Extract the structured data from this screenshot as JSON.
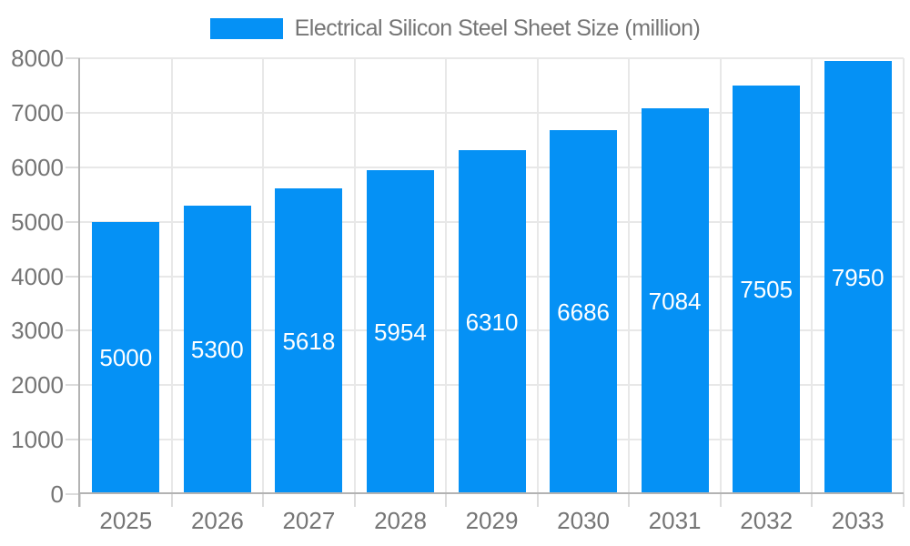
{
  "chart_data": {
    "type": "bar",
    "title": "Electrical Silicon Steel Sheet Size (million)",
    "legend": {
      "position": "top",
      "items": [
        "Electrical Silicon Steel Sheet Size (million)"
      ]
    },
    "categories": [
      "2025",
      "2026",
      "2027",
      "2028",
      "2029",
      "2030",
      "2031",
      "2032",
      "2033"
    ],
    "values": [
      5000,
      5300,
      5618,
      5954,
      6310,
      6686,
      7084,
      7505,
      7950
    ],
    "bar_value_labels": [
      "5000",
      "5300",
      "5618",
      "5954",
      "6310",
      "6686",
      "7084",
      "7505",
      "7950"
    ],
    "xlabel": "",
    "ylabel": "",
    "ylim": [
      0,
      8000
    ],
    "ytick_interval": 1000,
    "ytick_labels": [
      "0",
      "1000",
      "2000",
      "3000",
      "4000",
      "5000",
      "6000",
      "7000",
      "8000"
    ],
    "grid": true,
    "legend_position": "top",
    "colors": {
      "bar": "#0591f5",
      "axis_text": "#757575",
      "bar_label_text": "#ffffff",
      "grid_line": "#e8e8e8",
      "axis_line": "#b3b3b3",
      "tick_mark": "#dcdcdc",
      "background": "#ffffff"
    }
  }
}
